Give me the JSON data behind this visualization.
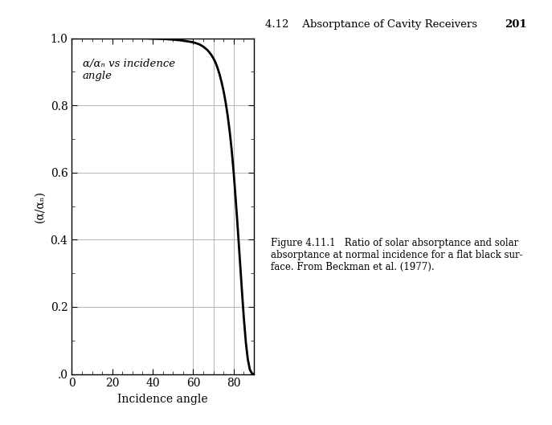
{
  "title": "4.12    Absorptance of Cavity Receivers",
  "title_page": "201",
  "xlabel": "Incidence angle",
  "ylabel": "(α/αₙ)",
  "legend_text": "α/αₙ vs incidence\nangle",
  "xlim": [
    0,
    90
  ],
  "ylim": [
    0.0,
    1.0
  ],
  "xticks": [
    0,
    20,
    40,
    60,
    80
  ],
  "yticks": [
    0.0,
    0.2,
    0.4,
    0.6,
    0.8,
    1.0
  ],
  "ytick_labels": [
    ".0",
    "0.2",
    "0.4",
    "0.6",
    "0.8",
    "1.0"
  ],
  "line_color": "#000000",
  "line_width": 2.0,
  "background_color": "#ffffff",
  "grid_color": "#aaaaaa",
  "figure_width": 6.87,
  "figure_height": 5.29,
  "dpi": 100,
  "angles_deg": [
    0,
    5,
    10,
    15,
    20,
    25,
    30,
    35,
    40,
    45,
    50,
    55,
    60,
    63,
    65,
    67,
    68,
    69,
    70,
    71,
    72,
    73,
    74,
    75,
    76,
    77,
    78,
    79,
    80,
    81,
    82,
    83,
    84,
    85,
    86,
    87,
    88,
    89,
    90
  ],
  "values": [
    1.0,
    1.0,
    1.0,
    1.0,
    1.0,
    1.0,
    1.0,
    1.0,
    0.999,
    0.998,
    0.996,
    0.993,
    0.988,
    0.982,
    0.975,
    0.965,
    0.958,
    0.95,
    0.94,
    0.928,
    0.912,
    0.893,
    0.87,
    0.843,
    0.81,
    0.771,
    0.724,
    0.668,
    0.6,
    0.52,
    0.435,
    0.345,
    0.255,
    0.168,
    0.095,
    0.043,
    0.013,
    0.002,
    0.0
  ],
  "caption": "Figure 4.11.1   Ratio of solar absorptance and solar\nabsorptance at normal incidence for a flat black sur-\nface. From Beckman et al. (1977)."
}
